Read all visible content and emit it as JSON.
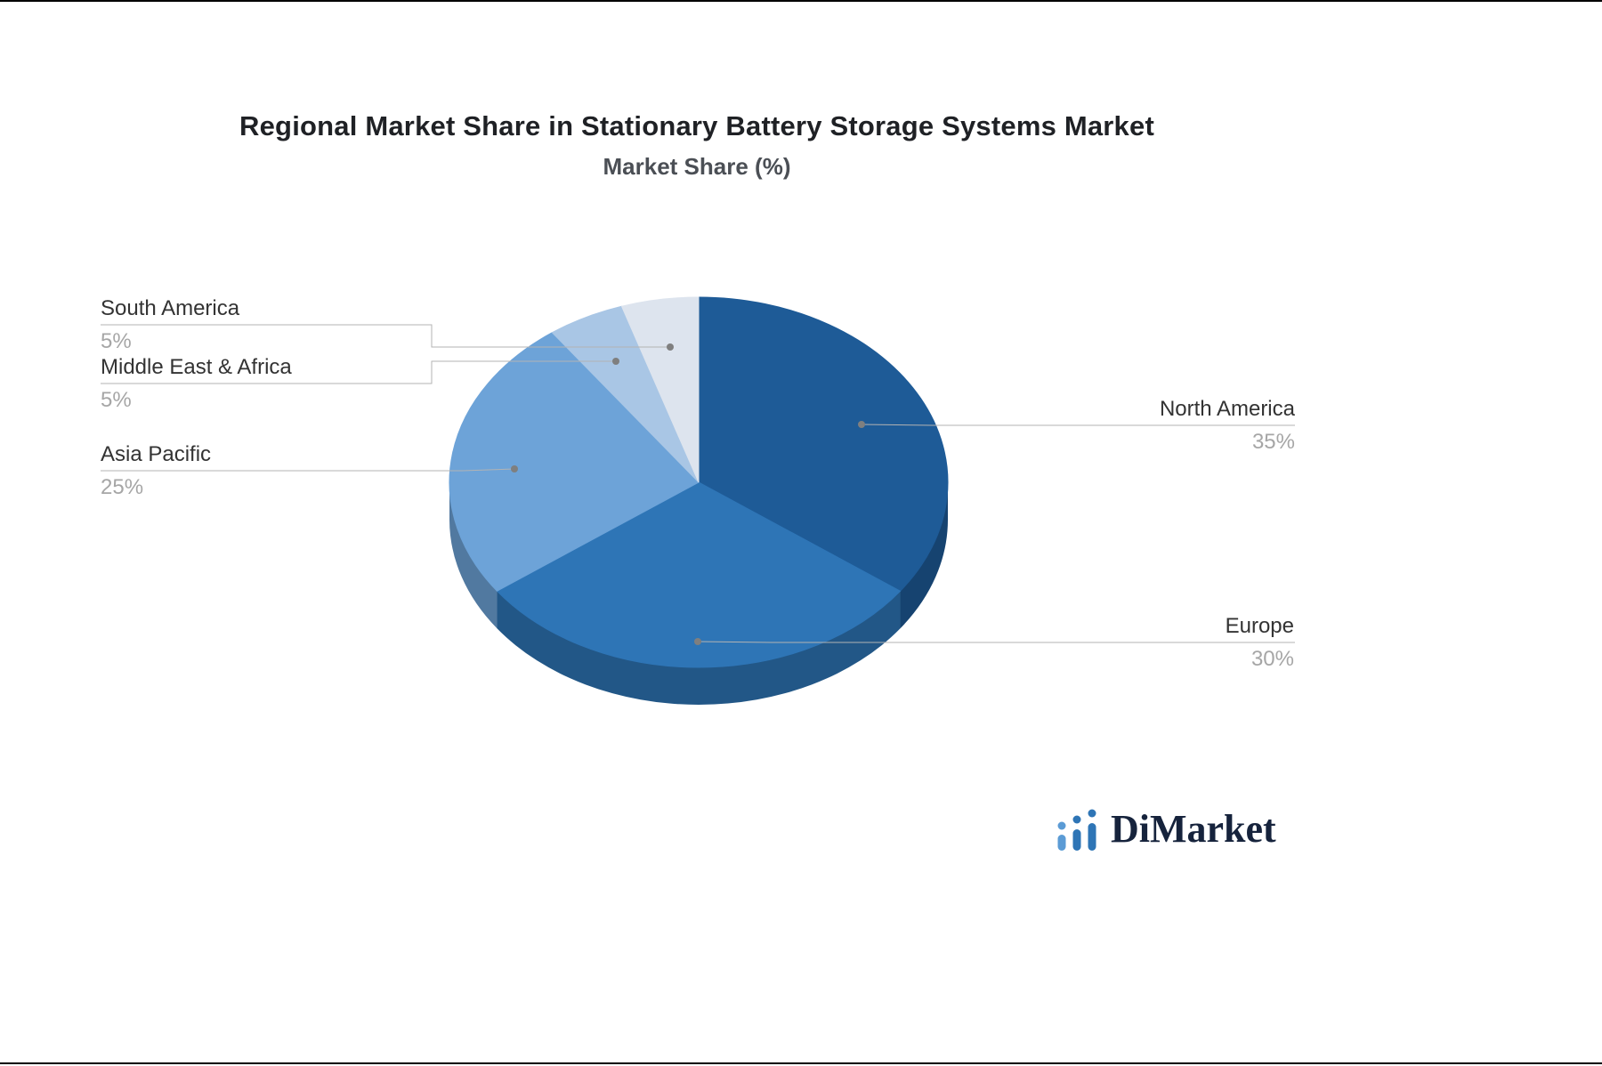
{
  "chart_data": {
    "type": "pie",
    "title": "Regional Market Share in Stationary Battery Storage Systems Market",
    "subtitle": "Market Share (%)",
    "unit": "%",
    "legend_position": "none",
    "style": "3d-pie",
    "start_angle_deg": -90,
    "direction": "clockwise",
    "categories": [
      "North America",
      "Europe",
      "Asia Pacific",
      "Middle East & Africa",
      "South America"
    ],
    "values": [
      35,
      30,
      25,
      5,
      5
    ],
    "slices": [
      {
        "label": "North America",
        "value": 35,
        "display": "35%",
        "color": "#1e5b97"
      },
      {
        "label": "Europe",
        "value": 30,
        "display": "30%",
        "color": "#2e75b6"
      },
      {
        "label": "Asia Pacific",
        "value": 25,
        "display": "25%",
        "color": "#6da3d8"
      },
      {
        "label": "Middle East & Africa",
        "value": 5,
        "display": "5%",
        "color": "#a9c6e5"
      },
      {
        "label": "South America",
        "value": 5,
        "display": "5%",
        "color": "#dde4ee"
      }
    ]
  },
  "branding": {
    "logo_text": "DiMarket",
    "logo_color": "#16233c",
    "logo_icon_color": "#2e75b6"
  }
}
